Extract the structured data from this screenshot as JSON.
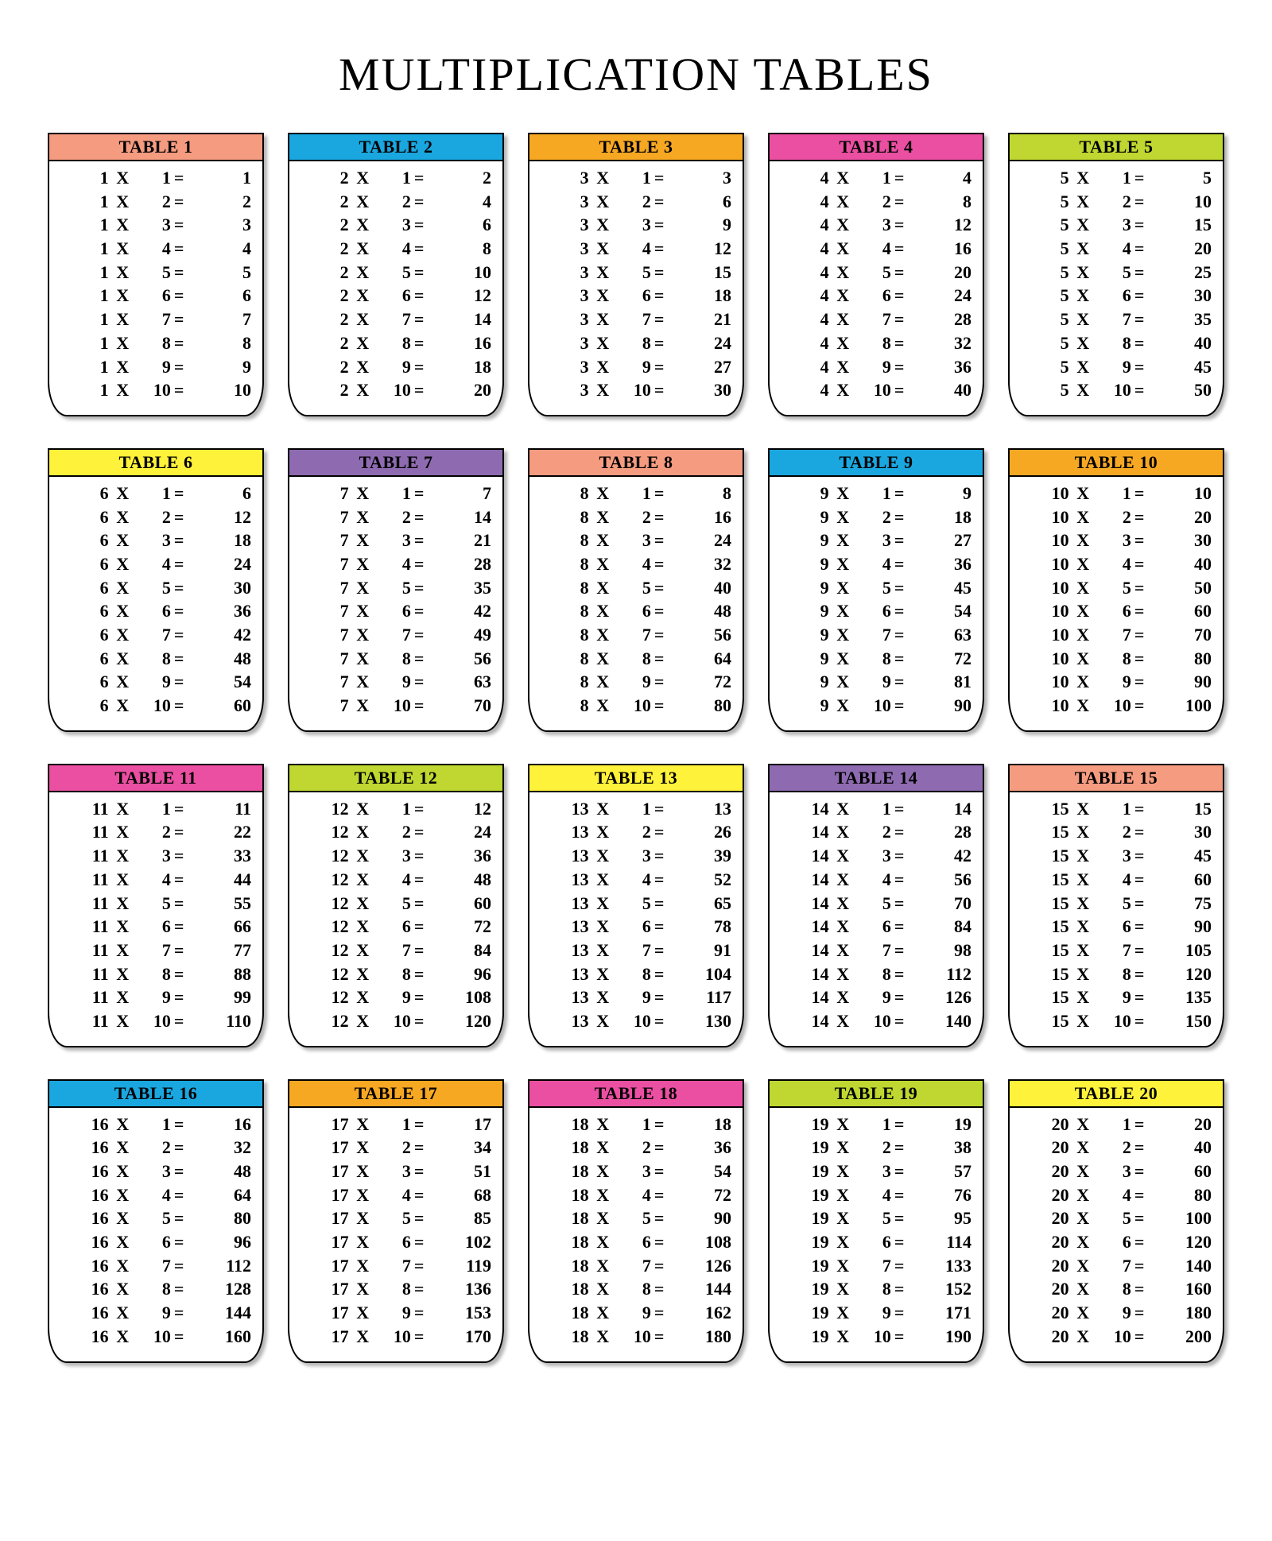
{
  "title": "MULTIPLICATION TABLES",
  "header_prefix": "TABLE",
  "x_symbol": "X",
  "eq_symbol": "=",
  "style": {
    "background_color": "#ffffff",
    "border_color": "#000000",
    "title_fontsize": 58,
    "header_fontsize": 22,
    "row_fontsize": 22,
    "card_shadow": "4px 4px 4px rgba(0,0,0,0.3)",
    "grid_columns": 5,
    "grid_rows": 4
  },
  "header_colors": [
    "#f59b80",
    "#1aa7e0",
    "#f7a823",
    "#ea4fa2",
    "#bfd730",
    "#fff23a",
    "#8e6bb0",
    "#f59b80",
    "#1aa7e0",
    "#f7a823",
    "#ea4fa2",
    "#bfd730",
    "#fff23a",
    "#8e6bb0",
    "#f59b80",
    "#1aa7e0",
    "#f7a823",
    "#ea4fa2",
    "#bfd730",
    "#fff23a"
  ],
  "tables": [
    {
      "n": 1,
      "rows": [
        [
          1,
          1,
          1
        ],
        [
          1,
          2,
          2
        ],
        [
          1,
          3,
          3
        ],
        [
          1,
          4,
          4
        ],
        [
          1,
          5,
          5
        ],
        [
          1,
          6,
          6
        ],
        [
          1,
          7,
          7
        ],
        [
          1,
          8,
          8
        ],
        [
          1,
          9,
          9
        ],
        [
          1,
          10,
          10
        ]
      ]
    },
    {
      "n": 2,
      "rows": [
        [
          2,
          1,
          2
        ],
        [
          2,
          2,
          4
        ],
        [
          2,
          3,
          6
        ],
        [
          2,
          4,
          8
        ],
        [
          2,
          5,
          10
        ],
        [
          2,
          6,
          12
        ],
        [
          2,
          7,
          14
        ],
        [
          2,
          8,
          16
        ],
        [
          2,
          9,
          18
        ],
        [
          2,
          10,
          20
        ]
      ]
    },
    {
      "n": 3,
      "rows": [
        [
          3,
          1,
          3
        ],
        [
          3,
          2,
          6
        ],
        [
          3,
          3,
          9
        ],
        [
          3,
          4,
          12
        ],
        [
          3,
          5,
          15
        ],
        [
          3,
          6,
          18
        ],
        [
          3,
          7,
          21
        ],
        [
          3,
          8,
          24
        ],
        [
          3,
          9,
          27
        ],
        [
          3,
          10,
          30
        ]
      ]
    },
    {
      "n": 4,
      "rows": [
        [
          4,
          1,
          4
        ],
        [
          4,
          2,
          8
        ],
        [
          4,
          3,
          12
        ],
        [
          4,
          4,
          16
        ],
        [
          4,
          5,
          20
        ],
        [
          4,
          6,
          24
        ],
        [
          4,
          7,
          28
        ],
        [
          4,
          8,
          32
        ],
        [
          4,
          9,
          36
        ],
        [
          4,
          10,
          40
        ]
      ]
    },
    {
      "n": 5,
      "rows": [
        [
          5,
          1,
          5
        ],
        [
          5,
          2,
          10
        ],
        [
          5,
          3,
          15
        ],
        [
          5,
          4,
          20
        ],
        [
          5,
          5,
          25
        ],
        [
          5,
          6,
          30
        ],
        [
          5,
          7,
          35
        ],
        [
          5,
          8,
          40
        ],
        [
          5,
          9,
          45
        ],
        [
          5,
          10,
          50
        ]
      ]
    },
    {
      "n": 6,
      "rows": [
        [
          6,
          1,
          6
        ],
        [
          6,
          2,
          12
        ],
        [
          6,
          3,
          18
        ],
        [
          6,
          4,
          24
        ],
        [
          6,
          5,
          30
        ],
        [
          6,
          6,
          36
        ],
        [
          6,
          7,
          42
        ],
        [
          6,
          8,
          48
        ],
        [
          6,
          9,
          54
        ],
        [
          6,
          10,
          60
        ]
      ]
    },
    {
      "n": 7,
      "rows": [
        [
          7,
          1,
          7
        ],
        [
          7,
          2,
          14
        ],
        [
          7,
          3,
          21
        ],
        [
          7,
          4,
          28
        ],
        [
          7,
          5,
          35
        ],
        [
          7,
          6,
          42
        ],
        [
          7,
          7,
          49
        ],
        [
          7,
          8,
          56
        ],
        [
          7,
          9,
          63
        ],
        [
          7,
          10,
          70
        ]
      ]
    },
    {
      "n": 8,
      "rows": [
        [
          8,
          1,
          8
        ],
        [
          8,
          2,
          16
        ],
        [
          8,
          3,
          24
        ],
        [
          8,
          4,
          32
        ],
        [
          8,
          5,
          40
        ],
        [
          8,
          6,
          48
        ],
        [
          8,
          7,
          56
        ],
        [
          8,
          8,
          64
        ],
        [
          8,
          9,
          72
        ],
        [
          8,
          10,
          80
        ]
      ]
    },
    {
      "n": 9,
      "rows": [
        [
          9,
          1,
          9
        ],
        [
          9,
          2,
          18
        ],
        [
          9,
          3,
          27
        ],
        [
          9,
          4,
          36
        ],
        [
          9,
          5,
          45
        ],
        [
          9,
          6,
          54
        ],
        [
          9,
          7,
          63
        ],
        [
          9,
          8,
          72
        ],
        [
          9,
          9,
          81
        ],
        [
          9,
          10,
          90
        ]
      ]
    },
    {
      "n": 10,
      "rows": [
        [
          10,
          1,
          10
        ],
        [
          10,
          2,
          20
        ],
        [
          10,
          3,
          30
        ],
        [
          10,
          4,
          40
        ],
        [
          10,
          5,
          50
        ],
        [
          10,
          6,
          60
        ],
        [
          10,
          7,
          70
        ],
        [
          10,
          8,
          80
        ],
        [
          10,
          9,
          90
        ],
        [
          10,
          10,
          100
        ]
      ]
    },
    {
      "n": 11,
      "rows": [
        [
          11,
          1,
          11
        ],
        [
          11,
          2,
          22
        ],
        [
          11,
          3,
          33
        ],
        [
          11,
          4,
          44
        ],
        [
          11,
          5,
          55
        ],
        [
          11,
          6,
          66
        ],
        [
          11,
          7,
          77
        ],
        [
          11,
          8,
          88
        ],
        [
          11,
          9,
          99
        ],
        [
          11,
          10,
          110
        ]
      ]
    },
    {
      "n": 12,
      "rows": [
        [
          12,
          1,
          12
        ],
        [
          12,
          2,
          24
        ],
        [
          12,
          3,
          36
        ],
        [
          12,
          4,
          48
        ],
        [
          12,
          5,
          60
        ],
        [
          12,
          6,
          72
        ],
        [
          12,
          7,
          84
        ],
        [
          12,
          8,
          96
        ],
        [
          12,
          9,
          108
        ],
        [
          12,
          10,
          120
        ]
      ]
    },
    {
      "n": 13,
      "rows": [
        [
          13,
          1,
          13
        ],
        [
          13,
          2,
          26
        ],
        [
          13,
          3,
          39
        ],
        [
          13,
          4,
          52
        ],
        [
          13,
          5,
          65
        ],
        [
          13,
          6,
          78
        ],
        [
          13,
          7,
          91
        ],
        [
          13,
          8,
          104
        ],
        [
          13,
          9,
          117
        ],
        [
          13,
          10,
          130
        ]
      ]
    },
    {
      "n": 14,
      "rows": [
        [
          14,
          1,
          14
        ],
        [
          14,
          2,
          28
        ],
        [
          14,
          3,
          42
        ],
        [
          14,
          4,
          56
        ],
        [
          14,
          5,
          70
        ],
        [
          14,
          6,
          84
        ],
        [
          14,
          7,
          98
        ],
        [
          14,
          8,
          112
        ],
        [
          14,
          9,
          126
        ],
        [
          14,
          10,
          140
        ]
      ]
    },
    {
      "n": 15,
      "rows": [
        [
          15,
          1,
          15
        ],
        [
          15,
          2,
          30
        ],
        [
          15,
          3,
          45
        ],
        [
          15,
          4,
          60
        ],
        [
          15,
          5,
          75
        ],
        [
          15,
          6,
          90
        ],
        [
          15,
          7,
          105
        ],
        [
          15,
          8,
          120
        ],
        [
          15,
          9,
          135
        ],
        [
          15,
          10,
          150
        ]
      ]
    },
    {
      "n": 16,
      "rows": [
        [
          16,
          1,
          16
        ],
        [
          16,
          2,
          32
        ],
        [
          16,
          3,
          48
        ],
        [
          16,
          4,
          64
        ],
        [
          16,
          5,
          80
        ],
        [
          16,
          6,
          96
        ],
        [
          16,
          7,
          112
        ],
        [
          16,
          8,
          128
        ],
        [
          16,
          9,
          144
        ],
        [
          16,
          10,
          160
        ]
      ]
    },
    {
      "n": 17,
      "rows": [
        [
          17,
          1,
          17
        ],
        [
          17,
          2,
          34
        ],
        [
          17,
          3,
          51
        ],
        [
          17,
          4,
          68
        ],
        [
          17,
          5,
          85
        ],
        [
          17,
          6,
          102
        ],
        [
          17,
          7,
          119
        ],
        [
          17,
          8,
          136
        ],
        [
          17,
          9,
          153
        ],
        [
          17,
          10,
          170
        ]
      ]
    },
    {
      "n": 18,
      "rows": [
        [
          18,
          1,
          18
        ],
        [
          18,
          2,
          36
        ],
        [
          18,
          3,
          54
        ],
        [
          18,
          4,
          72
        ],
        [
          18,
          5,
          90
        ],
        [
          18,
          6,
          108
        ],
        [
          18,
          7,
          126
        ],
        [
          18,
          8,
          144
        ],
        [
          18,
          9,
          162
        ],
        [
          18,
          10,
          180
        ]
      ]
    },
    {
      "n": 19,
      "rows": [
        [
          19,
          1,
          19
        ],
        [
          19,
          2,
          38
        ],
        [
          19,
          3,
          57
        ],
        [
          19,
          4,
          76
        ],
        [
          19,
          5,
          95
        ],
        [
          19,
          6,
          114
        ],
        [
          19,
          7,
          133
        ],
        [
          19,
          8,
          152
        ],
        [
          19,
          9,
          171
        ],
        [
          19,
          10,
          190
        ]
      ]
    },
    {
      "n": 20,
      "rows": [
        [
          20,
          1,
          20
        ],
        [
          20,
          2,
          40
        ],
        [
          20,
          3,
          60
        ],
        [
          20,
          4,
          80
        ],
        [
          20,
          5,
          100
        ],
        [
          20,
          6,
          120
        ],
        [
          20,
          7,
          140
        ],
        [
          20,
          8,
          160
        ],
        [
          20,
          9,
          180
        ],
        [
          20,
          10,
          200
        ]
      ]
    }
  ]
}
